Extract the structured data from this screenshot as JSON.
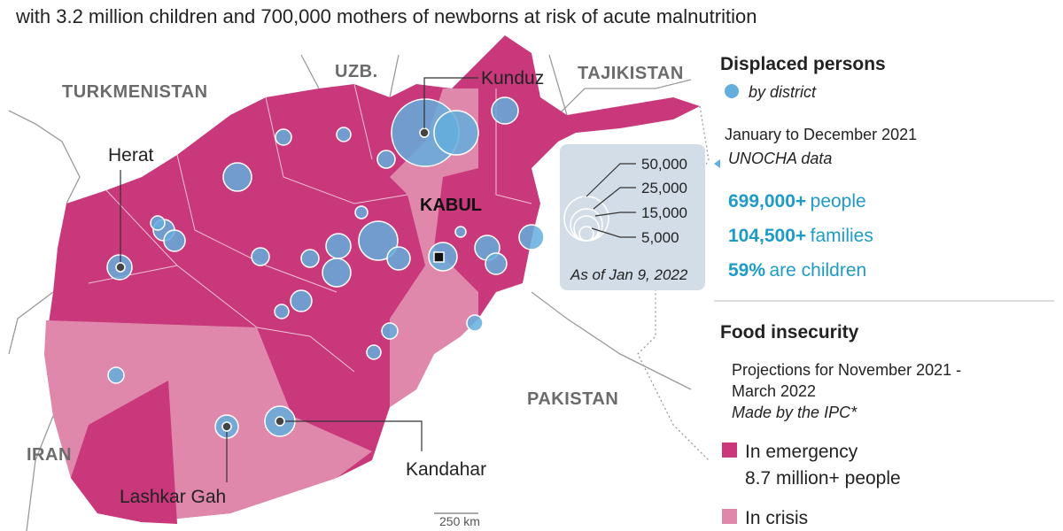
{
  "header": {
    "subtitle": "with 3.2 million children and 700,000 mothers of newborns at risk of acute malnutrition"
  },
  "map": {
    "countries": [
      "UZB.",
      "TAJIKISTAN",
      "TURKMENISTAN",
      "IRAN",
      "PAKISTAN"
    ],
    "cities": [
      "Herat",
      "Kunduz",
      "Kandahar",
      "Lashkar Gah"
    ],
    "capital": "KABUL",
    "scale": "250 km"
  },
  "bubble_legend": {
    "labels": [
      "50,000",
      "25,000",
      "15,000",
      "5,000"
    ],
    "note": "As of Jan 9, 2022"
  },
  "displaced": {
    "title": "Displaced persons",
    "subtitle": "by district",
    "period": "January to December 2021",
    "source": "UNOCHA data",
    "stats": [
      {
        "value": "699,000+",
        "unit": "people"
      },
      {
        "value": "104,500+",
        "unit": "families"
      },
      {
        "value": "59%",
        "unit": "are children"
      }
    ]
  },
  "food": {
    "title": "Food insecurity",
    "projection_lines": [
      "Projections for November 2021 -",
      "March 2022"
    ],
    "source": "Made by the IPC*",
    "legend": [
      {
        "label": "In emergency",
        "detail": "8.7 million+ people",
        "color": "#c8387a"
      },
      {
        "label": "In crisis",
        "color": "#df88ac"
      }
    ]
  }
}
